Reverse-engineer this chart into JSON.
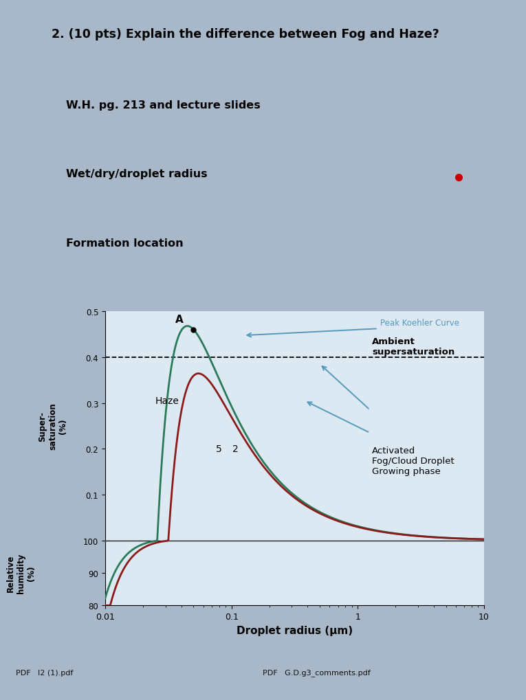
{
  "title": "2. (10 pts) Explain the difference between Fog and Haze?",
  "bullet1": "W.H. pg. 213 and lecture slides",
  "bullet2": "Wet/dry/droplet radius",
  "bullet3": "Formation location",
  "bg_color_top": "#c5d5e5",
  "bg_color_chart": "#dce8f2",
  "page_bg": "#a8b8c8",
  "taskbar_dark": "#253560",
  "taskbar_light": "#e0e8f0",
  "taskbar_footer": "#b8c4d0",
  "xlabel": "Droplet radius (μm)",
  "ylabel_ss": "Super-\nsaturation\n(%)",
  "ylabel_rh": "Relative\nhumidity\n(%)",
  "xmin": 0.01,
  "xmax": 10,
  "ambient_ss": 0.4,
  "label_A": "A",
  "label_Haze": "Haze",
  "label_5": "5",
  "label_2": "2",
  "label_ambient": "Ambient\nsupersaturation",
  "label_peak": "Peak Koehler Curve",
  "label_activated": "Activated\nFog/Cloud Droplet\nGrowing phase",
  "curve_green_color": "#2a7a5a",
  "curve_red_color": "#8b1a1a",
  "dashed_color": "#333333",
  "red_dot_color": "#cc0000",
  "arrow_color": "#5599bb",
  "footer_text1": "PDF   l2 (1).pdf",
  "footer_text2": "PDF   G.D.g3_comments.pdf"
}
